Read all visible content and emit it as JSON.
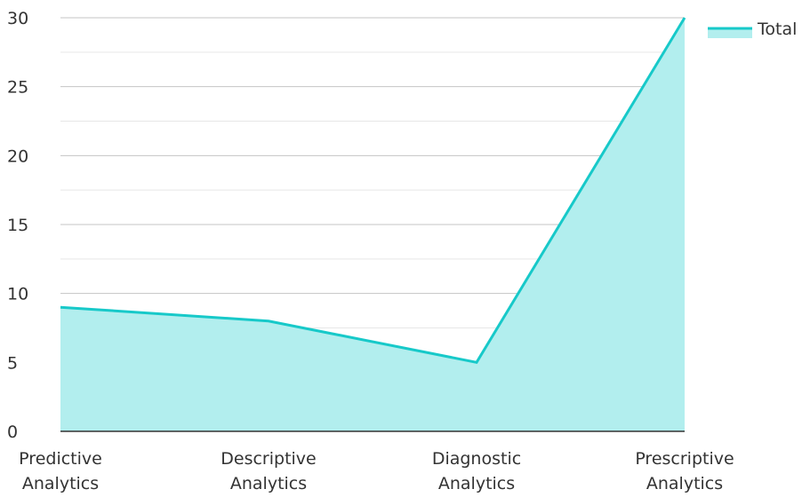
{
  "chart_data": {
    "type": "area",
    "categories": [
      [
        "Predictive",
        "Analytics"
      ],
      [
        "Descriptive",
        "Analytics"
      ],
      [
        "Diagnostic",
        "Analytics"
      ],
      [
        "Prescriptive",
        "Analytics"
      ]
    ],
    "series": [
      {
        "name": "Total",
        "values": [
          9,
          8,
          5,
          30
        ],
        "color": "#17c9c9",
        "fill": "#b2eeee"
      }
    ],
    "ylim": [
      0,
      30
    ],
    "yticks": [
      0,
      5,
      10,
      15,
      20,
      25,
      30
    ],
    "grid": true,
    "minor_grid": true,
    "legend": "top-right",
    "title": "",
    "xlabel": "",
    "ylabel": ""
  }
}
